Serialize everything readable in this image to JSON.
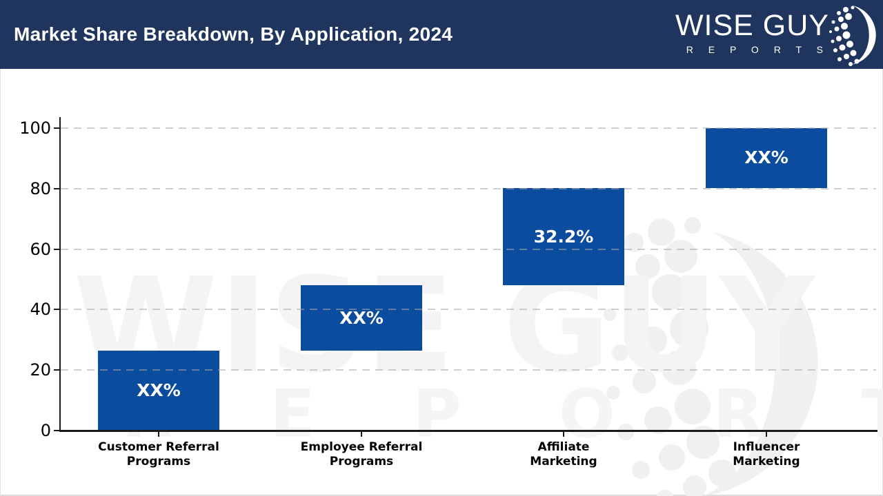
{
  "header": {
    "title": "Market Share Breakdown, By Application, 2024",
    "logo": {
      "line1": "WISE GUY",
      "line2": "R E P O R T S"
    }
  },
  "watermark": {
    "line1": "WISE GUY",
    "line2": "R E P O R T S"
  },
  "colors": {
    "header_bg": "#1f355e",
    "bar": "#0c4c9f",
    "axis": "#1a1a1a",
    "gridline": "#d9d9d9",
    "title_text": "#ffffff",
    "watermark_text": "#f4f4f6"
  },
  "chart_data": {
    "type": "bar",
    "subtype": "floating-waterfall",
    "title": "Market Share Breakdown, By Application, 2024",
    "categories": [
      "Customer Referral Programs",
      "Employee Referral Programs",
      "Affiliate Marketing",
      "Influencer Marketing"
    ],
    "category_lines": [
      [
        "Customer Referral",
        "Programs"
      ],
      [
        "Employee Referral",
        "Programs"
      ],
      [
        "Affiliate",
        "Marketing"
      ],
      [
        "Influencer",
        "Marketing"
      ]
    ],
    "segments": [
      {
        "start": 0,
        "end": 26.4,
        "label": "XX%"
      },
      {
        "start": 26.4,
        "end": 48,
        "label": "XX%"
      },
      {
        "start": 48,
        "end": 80.2,
        "label": "32.2%"
      },
      {
        "start": 80.2,
        "end": 100,
        "label": "XX%"
      }
    ],
    "yticks": [
      0,
      20,
      40,
      60,
      80,
      100
    ],
    "ylim": [
      0,
      100
    ],
    "xlabel": "",
    "ylabel": "",
    "grid": "horizontal-dashed",
    "legend": "none",
    "bar_color": "#0c4c9f"
  }
}
